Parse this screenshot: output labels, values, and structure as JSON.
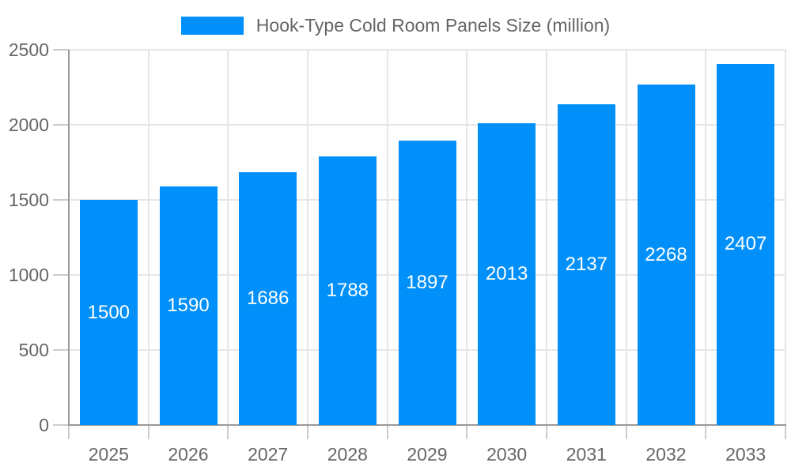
{
  "chart_data": {
    "type": "bar",
    "title": "Hook-Type Cold Room Panels Size (million)",
    "categories": [
      "2025",
      "2026",
      "2027",
      "2028",
      "2029",
      "2030",
      "2031",
      "2032",
      "2033"
    ],
    "values": [
      1500,
      1590,
      1686,
      1788,
      1897,
      2013,
      2137,
      2268,
      2407
    ],
    "ylim": [
      0,
      2500
    ],
    "yticks": [
      0,
      500,
      1000,
      1500,
      2000,
      2500
    ],
    "xlabel": "",
    "ylabel": "",
    "grid": true,
    "legend_position": "top-center",
    "bar_labels": "inside-center",
    "colors": {
      "bar": "#0190f9",
      "bar_label": "#ffffff",
      "axis_line": "#999999",
      "tick": "#cccccc",
      "gridline": "#e6e6e6",
      "text": "#666666",
      "background": "#ffffff"
    }
  }
}
